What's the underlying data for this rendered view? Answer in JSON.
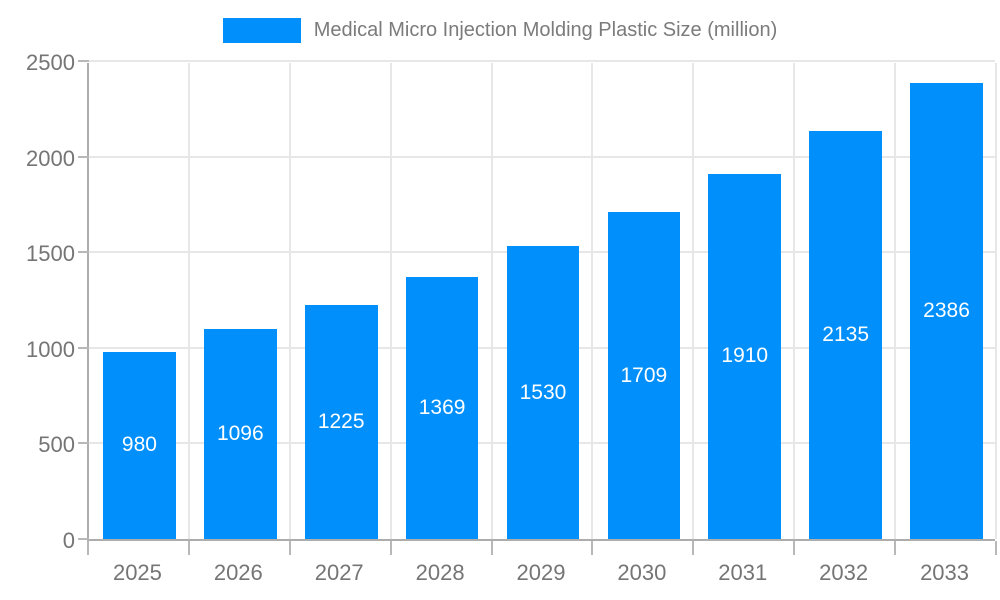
{
  "chart_data": {
    "type": "bar",
    "legend": "Medical Micro Injection Molding Plastic Size (million)",
    "categories": [
      "2025",
      "2026",
      "2027",
      "2028",
      "2029",
      "2030",
      "2031",
      "2032",
      "2033"
    ],
    "values": [
      980,
      1096,
      1225,
      1369,
      1530,
      1709,
      1910,
      2135,
      2386
    ],
    "ylim": [
      0,
      2500
    ],
    "yticks": [
      0,
      500,
      1000,
      1500,
      2000,
      2500
    ],
    "grid": true,
    "legend_position": "top",
    "colors": {
      "bar": "#008FFB",
      "grid": "#e7e7e7",
      "axis": "#adadad",
      "tick": "#b8b8b8",
      "axis_text": "#757575",
      "legend_text": "#7b7b7b",
      "value_label": "#ffffff"
    }
  }
}
